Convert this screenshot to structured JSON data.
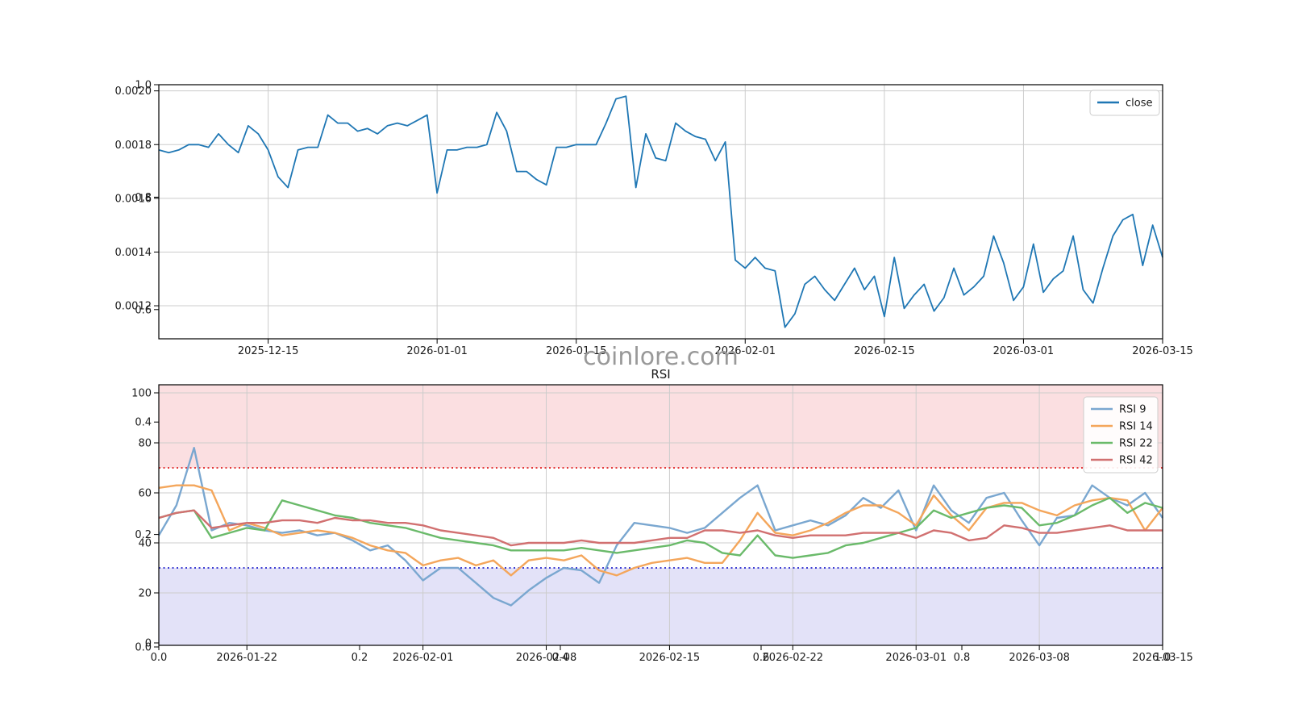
{
  "watermark": "coinlore.com",
  "figure_ticks": {
    "x_labels": [
      "0.0",
      "0.2",
      "0.4",
      "0.6",
      "0.8",
      "1.0"
    ],
    "y_labels": [
      "1.0",
      "0.8",
      "0.6",
      "0.4",
      "0.2",
      "0.0"
    ]
  },
  "chart_data": [
    {
      "id": "price",
      "type": "line",
      "title": "",
      "x_start": "2025-12-04",
      "x_end": "2026-03-15",
      "x_freq": "daily",
      "grid": true,
      "xtick_labels": [
        "2025-12-15",
        "2026-01-01",
        "2026-01-15",
        "2026-02-01",
        "2026-02-15",
        "2026-03-01",
        "2026-03-15"
      ],
      "xtick_day_index": [
        11,
        28,
        42,
        59,
        73,
        87,
        101
      ],
      "ytick_labels": [
        "0.0012",
        "0.0014",
        "0.0016",
        "0.0018",
        "0.0020"
      ],
      "ytick_values": [
        0.0012,
        0.0014,
        0.0016,
        0.0018,
        0.002
      ],
      "ylim": [
        0.001077,
        0.002023
      ],
      "legend": {
        "position": "upper-right",
        "entries": [
          "close"
        ]
      },
      "series": [
        {
          "name": "close",
          "color": "#1f77b4",
          "values": [
            0.00178,
            0.00177,
            0.00178,
            0.0018,
            0.0018,
            0.00179,
            0.00184,
            0.0018,
            0.00177,
            0.00187,
            0.00184,
            0.00178,
            0.00168,
            0.00164,
            0.00178,
            0.00179,
            0.00179,
            0.00191,
            0.00188,
            0.00188,
            0.00185,
            0.00186,
            0.00184,
            0.00187,
            0.00188,
            0.00187,
            0.00189,
            0.00191,
            0.00162,
            0.00178,
            0.00178,
            0.00179,
            0.00179,
            0.0018,
            0.00192,
            0.00185,
            0.0017,
            0.0017,
            0.00167,
            0.00165,
            0.00179,
            0.00179,
            0.0018,
            0.0018,
            0.0018,
            0.00188,
            0.00197,
            0.00198,
            0.00164,
            0.00184,
            0.00175,
            0.00174,
            0.00188,
            0.00185,
            0.00183,
            0.00182,
            0.00174,
            0.00181,
            0.00137,
            0.00134,
            0.00138,
            0.00134,
            0.00133,
            0.00112,
            0.00117,
            0.00128,
            0.00131,
            0.00126,
            0.00122,
            0.00128,
            0.00134,
            0.00126,
            0.00131,
            0.00116,
            0.00138,
            0.00119,
            0.00124,
            0.00128,
            0.00118,
            0.00123,
            0.00134,
            0.00124,
            0.00127,
            0.00131,
            0.00146,
            0.00136,
            0.00122,
            0.00127,
            0.00143,
            0.00125,
            0.0013,
            0.00133,
            0.00146,
            0.00126,
            0.00121,
            0.00134,
            0.00146,
            0.00152,
            0.00154,
            0.00135,
            0.0015,
            0.00138
          ]
        }
      ]
    },
    {
      "id": "rsi",
      "type": "line",
      "title": "RSI",
      "x_start": "2026-01-17",
      "x_end": "2026-03-15",
      "x_freq": "daily",
      "grid": true,
      "xtick_labels": [
        "2026-01-22",
        "2026-02-01",
        "2026-02-08",
        "2026-02-15",
        "2026-02-22",
        "2026-03-01",
        "2026-03-08",
        "2026-03-15"
      ],
      "xtick_day_index": [
        5,
        15,
        22,
        29,
        36,
        43,
        50,
        57
      ],
      "ytick_labels": [
        "0",
        "20",
        "40",
        "60",
        "80",
        "100"
      ],
      "ytick_values": [
        0,
        20,
        40,
        60,
        80,
        100
      ],
      "ylim": [
        0,
        104
      ],
      "thresholds": {
        "overbought_level": 70,
        "oversold_level": 30,
        "overbought_line_color": "#e02626",
        "oversold_line_color": "#2424cc",
        "overbought_fill_color": "#fbdfe1",
        "oversold_fill_color": "#e3e2f8"
      },
      "legend": {
        "position": "upper-right",
        "entries": [
          "RSI 9",
          "RSI 14",
          "RSI 22",
          "RSI 42"
        ]
      },
      "series": [
        {
          "name": "RSI 9",
          "color": "#7aa7d0",
          "values": [
            43,
            55,
            78,
            45,
            48,
            47,
            45,
            44,
            45,
            43,
            44,
            41,
            37,
            39,
            33,
            25,
            30,
            30,
            24,
            18,
            15,
            21,
            26,
            30,
            29,
            24,
            39,
            48,
            47,
            46,
            44,
            46,
            52,
            58,
            63,
            45,
            47,
            49,
            47,
            51,
            58,
            54,
            61,
            45,
            63,
            53,
            48,
            58,
            60,
            49,
            39,
            50,
            51,
            63,
            58,
            55,
            60,
            50
          ]
        },
        {
          "name": "RSI 14",
          "color": "#f4a65b",
          "values": [
            62,
            63,
            63,
            61,
            45,
            48,
            46,
            43,
            44,
            45,
            44,
            42,
            39,
            37,
            36,
            31,
            33,
            34,
            31,
            33,
            27,
            33,
            34,
            33,
            35,
            29,
            27,
            30,
            32,
            33,
            34,
            32,
            32,
            41,
            52,
            44,
            43,
            45,
            48,
            52,
            55,
            55,
            52,
            47,
            59,
            51,
            45,
            54,
            56,
            56,
            53,
            51,
            55,
            57,
            58,
            57,
            45,
            54
          ]
        },
        {
          "name": "RSI 22",
          "color": "#6aba6a",
          "values": [
            50,
            52,
            53,
            42,
            44,
            46,
            45,
            57,
            55,
            53,
            51,
            50,
            48,
            47,
            46,
            44,
            42,
            41,
            40,
            39,
            37,
            37,
            37,
            37,
            38,
            37,
            36,
            37,
            38,
            39,
            41,
            40,
            36,
            35,
            43,
            35,
            34,
            35,
            36,
            39,
            40,
            42,
            44,
            46,
            53,
            50,
            52,
            54,
            55,
            54,
            47,
            48,
            51,
            55,
            58,
            52,
            56,
            54
          ]
        },
        {
          "name": "RSI 42",
          "color": "#d17070",
          "values": [
            50,
            52,
            53,
            46,
            47,
            48,
            48,
            49,
            49,
            48,
            50,
            49,
            49,
            48,
            48,
            47,
            45,
            44,
            43,
            42,
            39,
            40,
            40,
            40,
            41,
            40,
            40,
            40,
            41,
            42,
            42,
            45,
            45,
            44,
            45,
            43,
            42,
            43,
            43,
            43,
            44,
            44,
            44,
            42,
            45,
            44,
            41,
            42,
            47,
            46,
            44,
            44,
            45,
            46,
            47,
            45,
            45,
            45
          ]
        }
      ]
    }
  ]
}
